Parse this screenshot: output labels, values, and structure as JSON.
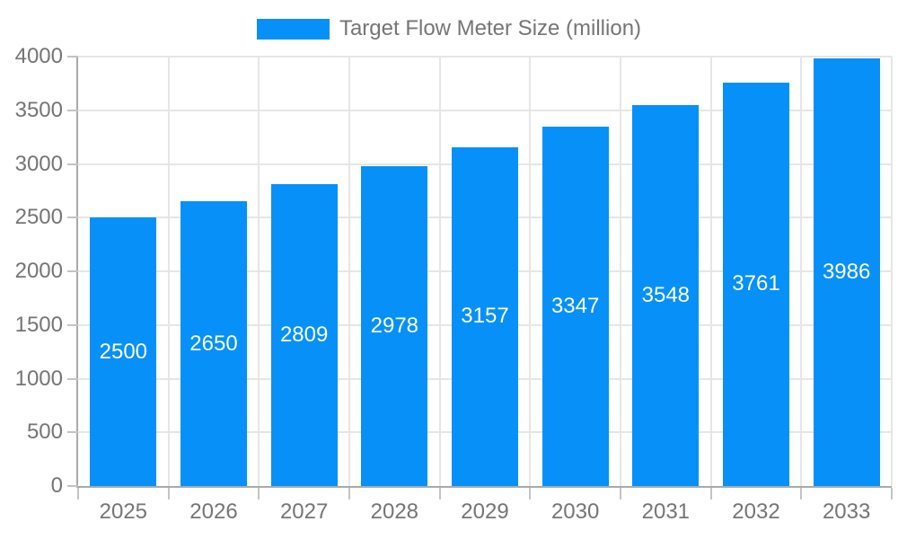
{
  "chart_data": {
    "type": "bar",
    "title": "Target Flow Meter Size (million)",
    "categories": [
      "2025",
      "2026",
      "2027",
      "2028",
      "2029",
      "2030",
      "2031",
      "2032",
      "2033"
    ],
    "series": [
      {
        "name": "Target Flow Meter Size (million)",
        "color": "#0690f8",
        "values": [
          2500,
          2650,
          2809,
          2978,
          3157,
          3347,
          3548,
          3761,
          3986
        ]
      }
    ],
    "xlabel": "",
    "ylabel": "",
    "ylim": [
      0,
      4000
    ],
    "ytick_step": 500,
    "yticks": [
      0,
      500,
      1000,
      1500,
      2000,
      2500,
      3000,
      3500,
      4000
    ],
    "grid": true,
    "legend_position": "top-center",
    "data_labels": {
      "position": "inside-center",
      "color": "#ffffff"
    }
  },
  "colors": {
    "bar": "#0690f8",
    "axis_text": "#757575",
    "grid_line": "#e6e6e6",
    "axis_line": "#a9a9a9",
    "tick": "#c4c4c4",
    "bar_label": "#ffffff",
    "background": "#ffffff"
  }
}
